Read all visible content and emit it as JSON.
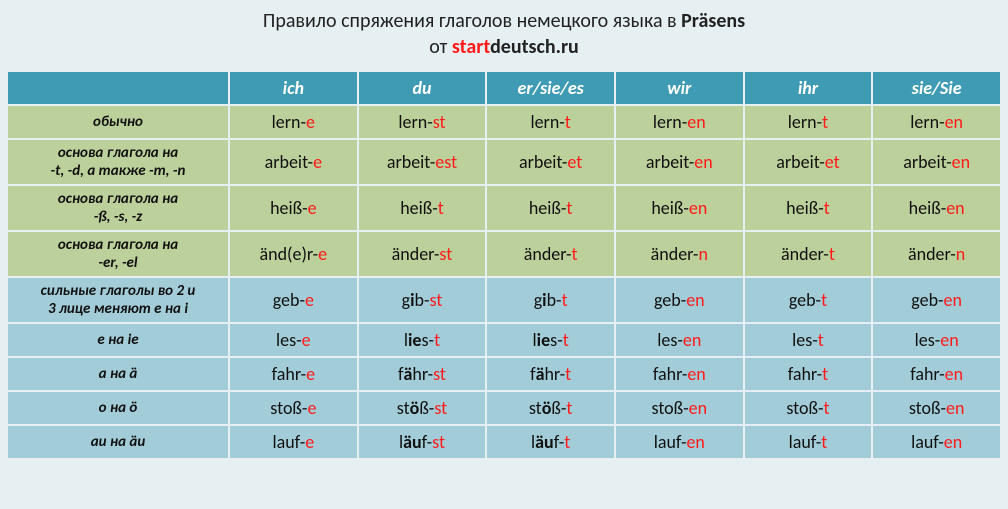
{
  "colors": {
    "page_bg": "#e6f0f3",
    "header_bg": "#3f9bb3",
    "row_green": "#bbd09a",
    "row_blue": "#a2ccd8",
    "text": "#111111",
    "suffix": "#ff1a1a",
    "header_text": "#ffffff",
    "brand_red": "#ff1a1a"
  },
  "title": {
    "line1_prefix": "Правило спряжения глаголов немецкого языка в ",
    "line1_bold": "Präsens",
    "line2_prefix": "от ",
    "brand_red": "start",
    "brand_rest": "deutsch.ru"
  },
  "headers": [
    "",
    "ich",
    "du",
    "er/sie/es",
    "wir",
    "ihr",
    "sie/Sie"
  ],
  "rows": [
    {
      "label": "обычно",
      "zone": "green",
      "cells": [
        {
          "stem": "lern-",
          "end": "e"
        },
        {
          "stem": "lern-",
          "end": "st"
        },
        {
          "stem": "lern-",
          "end": "t"
        },
        {
          "stem": "lern-",
          "end": "en"
        },
        {
          "stem": "lern-",
          "end": "t"
        },
        {
          "stem": "lern-",
          "end": "en"
        }
      ]
    },
    {
      "label": "основа глагола на\n-t, -d, а также -m, -n",
      "zone": "green",
      "cells": [
        {
          "stem": "arbeit-",
          "end": "e"
        },
        {
          "stem": "arbeit-",
          "end": "est"
        },
        {
          "stem": "arbeit-",
          "end": "et"
        },
        {
          "stem": "arbeit-",
          "end": "en"
        },
        {
          "stem": "arbeit-",
          "end": "et"
        },
        {
          "stem": "arbeit-",
          "end": "en"
        }
      ]
    },
    {
      "label": "основа глагола на\n-ß, -s, -z",
      "zone": "green",
      "cells": [
        {
          "stem": "heiß-",
          "end": "e"
        },
        {
          "stem": "heiß-",
          "end": "t"
        },
        {
          "stem": "heiß-",
          "end": "t"
        },
        {
          "stem": "heiß-",
          "end": "en"
        },
        {
          "stem": "heiß-",
          "end": "t"
        },
        {
          "stem": "heiß-",
          "end": "en"
        }
      ]
    },
    {
      "label": "основа глагола на\n-er, -el",
      "zone": "green",
      "cells": [
        {
          "stem": "änd(e)r-",
          "end": "e"
        },
        {
          "stem": "änder-",
          "end": "st"
        },
        {
          "stem": "änder-",
          "end": "t"
        },
        {
          "stem": "änder-",
          "end": "n"
        },
        {
          "stem": "änder-",
          "end": "t"
        },
        {
          "stem": "änder-",
          "end": "n"
        }
      ]
    },
    {
      "label_parts": {
        "pre": "сильные глаголы во 2 и\n3 лице меняют ",
        "b1": "e",
        "mid": " на ",
        "b2": "i"
      },
      "zone": "blue",
      "cells": [
        {
          "stem": "geb-",
          "end": "e"
        },
        {
          "stem_pre": "g",
          "stem_bold": "i",
          "stem_post": "b-",
          "end": "st"
        },
        {
          "stem_pre": "g",
          "stem_bold": "i",
          "stem_post": "b-",
          "end": "t"
        },
        {
          "stem": "geb-",
          "end": "en"
        },
        {
          "stem": "geb-",
          "end": "t"
        },
        {
          "stem": "geb-",
          "end": "en"
        }
      ]
    },
    {
      "label_parts": {
        "pre": "",
        "b1": "e",
        "mid": " на ",
        "b2": "ie"
      },
      "zone": "blue",
      "cells": [
        {
          "stem": "les-",
          "end": "e"
        },
        {
          "stem_pre": "l",
          "stem_bold": "ie",
          "stem_post": "s-",
          "end": "t"
        },
        {
          "stem_pre": "l",
          "stem_bold": "ie",
          "stem_post": "s-",
          "end": "t"
        },
        {
          "stem": "les-",
          "end": "en"
        },
        {
          "stem": "les-",
          "end": "t"
        },
        {
          "stem": "les-",
          "end": "en"
        }
      ]
    },
    {
      "label_parts": {
        "pre": "",
        "b1": "a",
        "mid": " на ",
        "b2": "ä"
      },
      "zone": "blue",
      "cells": [
        {
          "stem": "fahr-",
          "end": "e"
        },
        {
          "stem_pre": "f",
          "stem_bold": "ä",
          "stem_post": "hr-",
          "end": "st"
        },
        {
          "stem_pre": "f",
          "stem_bold": "ä",
          "stem_post": "hr-",
          "end": "t"
        },
        {
          "stem": "fahr-",
          "end": "en"
        },
        {
          "stem": "fahr-",
          "end": "t"
        },
        {
          "stem": "fahr-",
          "end": "en"
        }
      ]
    },
    {
      "label_parts": {
        "pre": "",
        "b1": "o",
        "mid": " на ",
        "b2": "ö"
      },
      "zone": "blue",
      "cells": [
        {
          "stem": "stoß-",
          "end": "e"
        },
        {
          "stem_pre": "st",
          "stem_bold": "ö",
          "stem_post": "ß-",
          "end": "st"
        },
        {
          "stem_pre": "st",
          "stem_bold": "ö",
          "stem_post": "ß-",
          "end": "t"
        },
        {
          "stem": "stoß-",
          "end": "en"
        },
        {
          "stem": "stoß-",
          "end": "t"
        },
        {
          "stem": "stoß-",
          "end": "en"
        }
      ]
    },
    {
      "label_parts": {
        "pre": "",
        "b1": "au",
        "mid": " на ",
        "b2": "äu"
      },
      "zone": "blue",
      "cells": [
        {
          "stem": "lauf-",
          "end": "e"
        },
        {
          "stem_pre": "l",
          "stem_bold": "äu",
          "stem_post": "f-",
          "end": "st"
        },
        {
          "stem_pre": "l",
          "stem_bold": "äu",
          "stem_post": "f-",
          "end": "t"
        },
        {
          "stem": "lauf-",
          "end": "en"
        },
        {
          "stem": "lauf-",
          "end": "t"
        },
        {
          "stem": "lauf-",
          "end": "en"
        }
      ]
    }
  ]
}
